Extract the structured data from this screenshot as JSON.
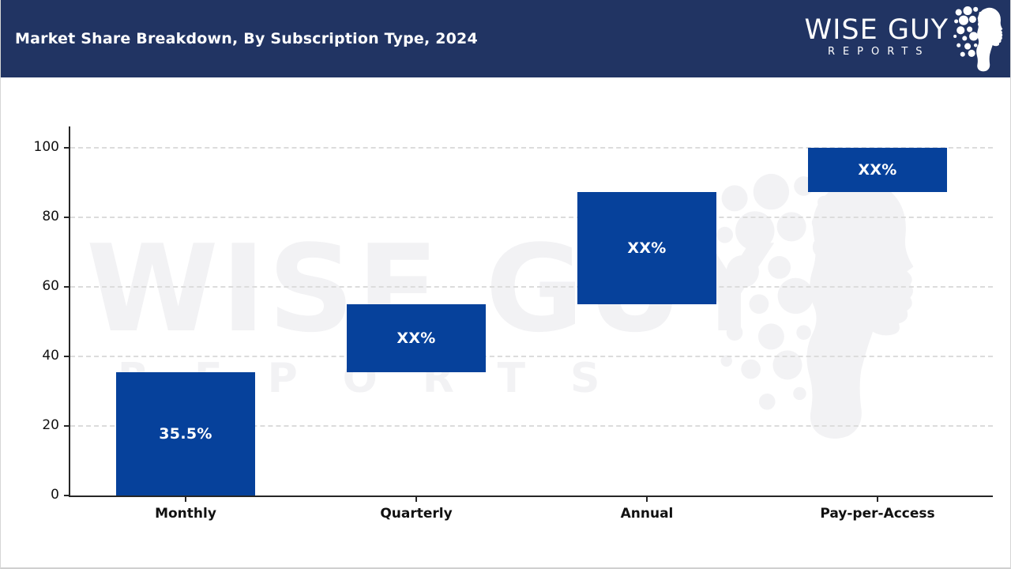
{
  "header": {
    "title": "Market Share Breakdown, By Subscription Type, 2024",
    "logo": {
      "line1": "WISE GUY",
      "line2": "REPORTS"
    }
  },
  "watermark": {
    "line1": "WISE GUY",
    "line2": "REPORTS"
  },
  "chart_data": {
    "type": "bar",
    "subtype": "waterfall",
    "title": "Market Share Breakdown, By Subscription Type, 2024",
    "categories": [
      "Monthly",
      "Quarterly",
      "Annual",
      "Pay-per-Access"
    ],
    "segments": [
      {
        "category": "Monthly",
        "start": 0,
        "end": 35.5,
        "label": "35.5%"
      },
      {
        "category": "Quarterly",
        "start": 35.5,
        "end": 55,
        "label": "XX%"
      },
      {
        "category": "Annual",
        "start": 55,
        "end": 87.3,
        "label": "XX%"
      },
      {
        "category": "Pay-per-Access",
        "start": 87.3,
        "end": 100,
        "label": "XX%"
      }
    ],
    "yticks": [
      0,
      20,
      40,
      60,
      80,
      100
    ],
    "ylim": [
      0,
      106
    ],
    "xlabel": "",
    "ylabel": "",
    "grid": "horizontal-dashed",
    "legend": "none",
    "bar_color": "#06419b",
    "label_color": "#ffffff"
  },
  "colors": {
    "header_bg": "#213463",
    "bar": "#06419b",
    "axis": "#262626",
    "grid": "#dcdcdc",
    "watermark": "#f2f2f4"
  }
}
